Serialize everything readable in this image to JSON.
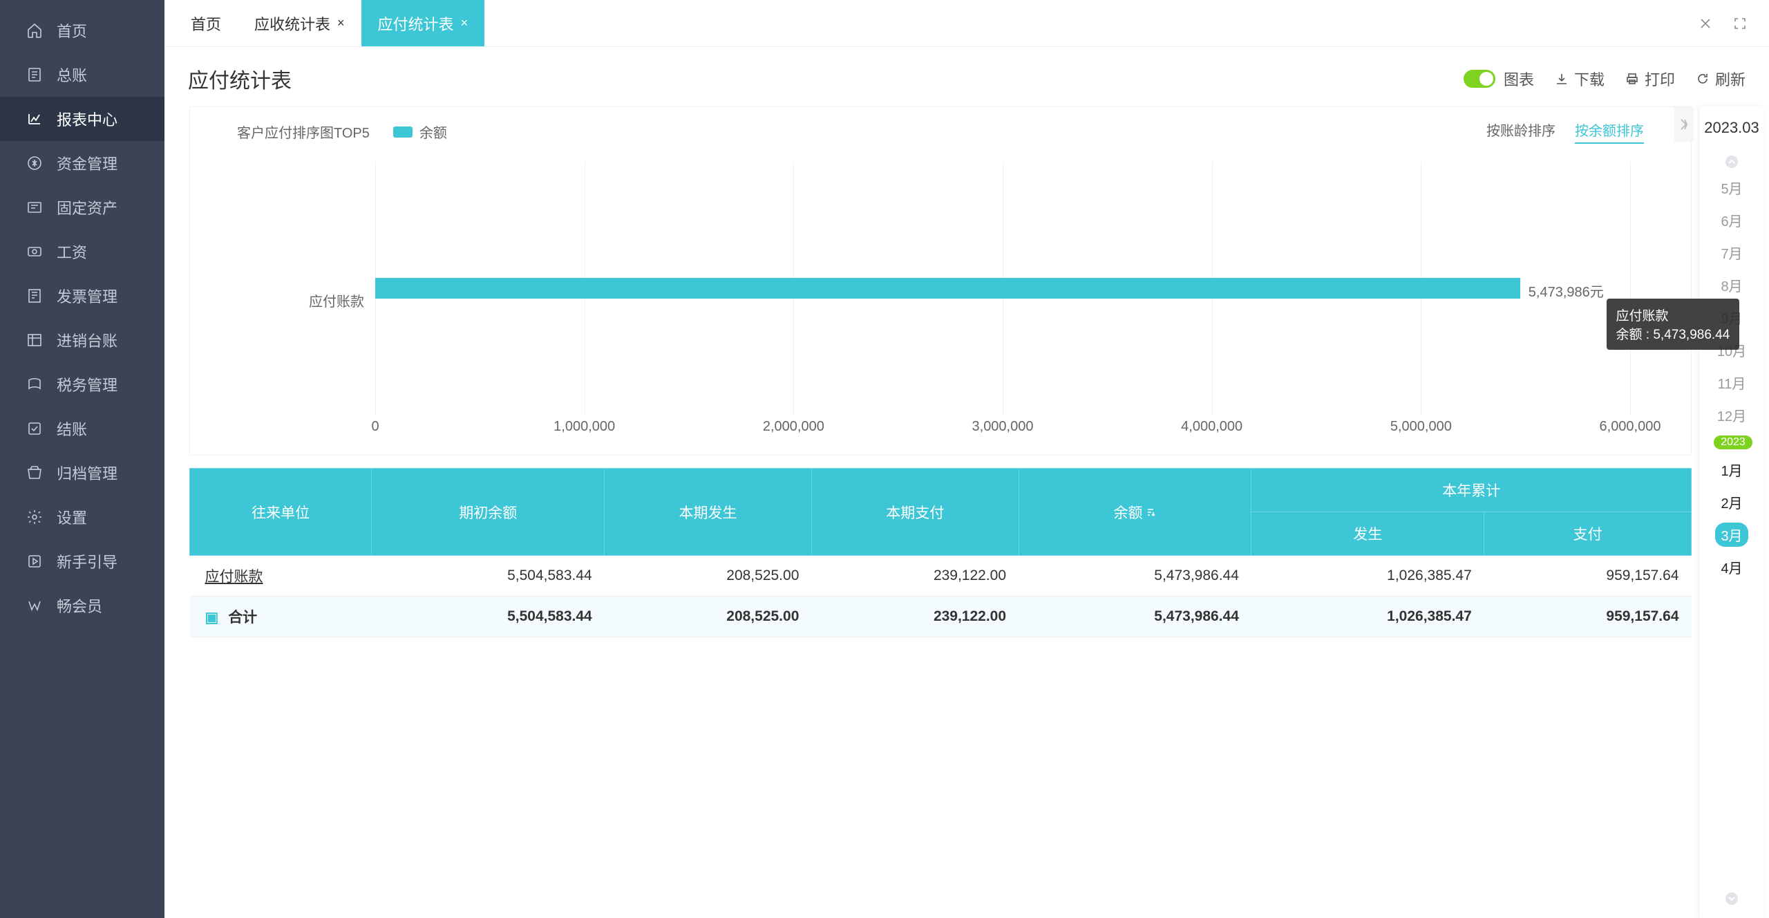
{
  "colors": {
    "accent": "#3dc6d5",
    "sidebar": "#3a4456",
    "toggle_on": "#7ed321"
  },
  "sidebar": {
    "items": [
      {
        "label": "首页",
        "icon": "home"
      },
      {
        "label": "总账",
        "icon": "ledger"
      },
      {
        "label": "报表中心",
        "icon": "chart",
        "active": true
      },
      {
        "label": "资金管理",
        "icon": "funds"
      },
      {
        "label": "固定资产",
        "icon": "asset"
      },
      {
        "label": "工资",
        "icon": "salary"
      },
      {
        "label": "发票管理",
        "icon": "invoice"
      },
      {
        "label": "进销台账",
        "icon": "stock"
      },
      {
        "label": "税务管理",
        "icon": "tax"
      },
      {
        "label": "结账",
        "icon": "close-period"
      },
      {
        "label": "归档管理",
        "icon": "archive"
      },
      {
        "label": "设置",
        "icon": "settings"
      },
      {
        "label": "新手引导",
        "icon": "guide"
      },
      {
        "label": "畅会员",
        "icon": "member"
      }
    ]
  },
  "tabs": [
    {
      "label": "首页",
      "closable": false
    },
    {
      "label": "应收统计表",
      "closable": true
    },
    {
      "label": "应付统计表",
      "closable": true,
      "active": true
    }
  ],
  "page": {
    "title": "应付统计表"
  },
  "header_actions": {
    "chart_toggle_label": "图表",
    "download_label": "下载",
    "print_label": "打印",
    "refresh_label": "刷新"
  },
  "chart": {
    "title": "客户应付排序图TOP5",
    "legend_label": "余额",
    "sort_options": [
      "按账龄排序",
      "按余额排序"
    ],
    "sort_active_index": 1,
    "y_category": "应付账款",
    "bar_value": 5473986.44,
    "bar_value_display": "5,473,986元",
    "bar_color": "#3dc6d5",
    "x_min": 0,
    "x_max": 6000000,
    "x_tick_step": 1000000,
    "x_ticks": [
      "0",
      "1,000,000",
      "2,000,000",
      "3,000,000",
      "4,000,000",
      "5,000,000",
      "6,000,000"
    ],
    "tooltip": {
      "line1": "应付账款",
      "line2": "余额 : 5,473,986.44"
    },
    "grid_color": "#eef1f4",
    "background": "#ffffff"
  },
  "table": {
    "columns": {
      "unit": "往来单位",
      "opening": "期初余额",
      "occurred": "本期发生",
      "paid": "本期支付",
      "balance": "余额",
      "ytd_group": "本年累计",
      "ytd_occurred": "发生",
      "ytd_paid": "支付"
    },
    "rows": [
      {
        "unit": "应付账款",
        "opening": "5,504,583.44",
        "occurred": "208,525.00",
        "paid": "239,122.00",
        "balance": "5,473,986.44",
        "ytd_occurred": "1,026,385.47",
        "ytd_paid": "959,157.64"
      }
    ],
    "total": {
      "label": "合计",
      "opening": "5,504,583.44",
      "occurred": "208,525.00",
      "paid": "239,122.00",
      "balance": "5,473,986.44",
      "ytd_occurred": "1,026,385.47",
      "ytd_paid": "959,157.64"
    }
  },
  "timeline": {
    "current": "2023.03",
    "year_badge": "2023",
    "months_prev_year": [
      "5月",
      "6月",
      "7月",
      "8月",
      "9月",
      "10月",
      "11月",
      "12月"
    ],
    "months_current_year": [
      "1月",
      "2月",
      "3月",
      "4月"
    ],
    "active_month": "3月"
  }
}
